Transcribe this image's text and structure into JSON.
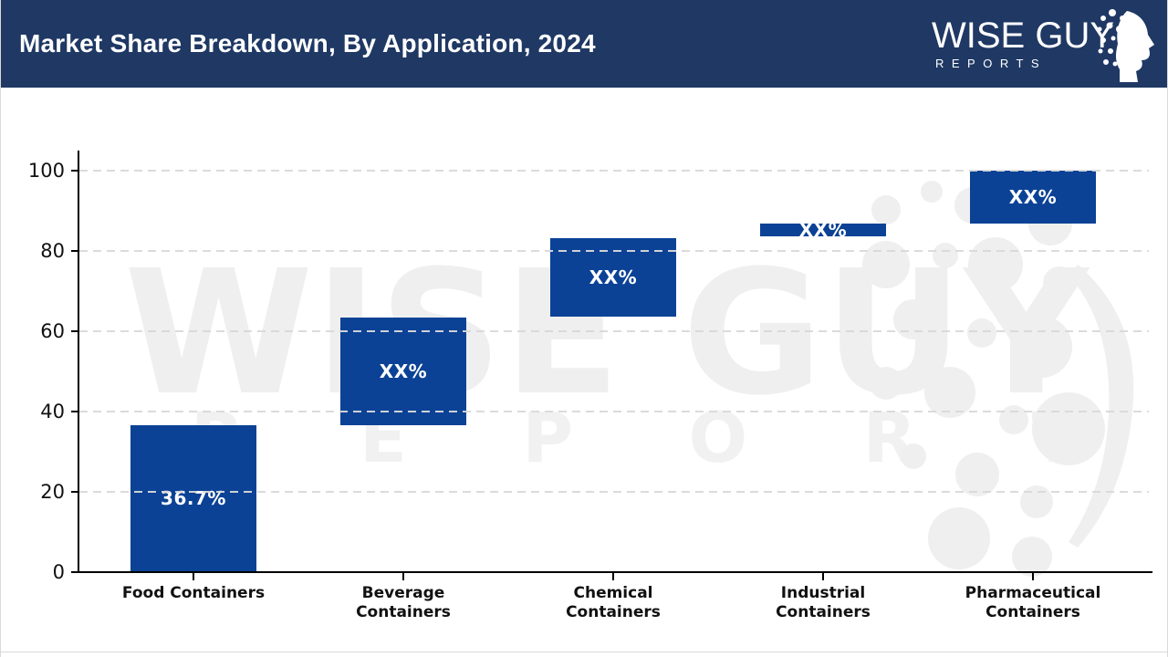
{
  "header": {
    "title": "Market Share Breakdown, By Application, 2024",
    "bg_color": "#1f3864",
    "logo": {
      "wordmark": "WISE GUY",
      "subtext": "R E P O R T S",
      "icon": "dotted-face-profile-icon",
      "color": "#ffffff"
    }
  },
  "watermark": {
    "line1": "WISE GUY",
    "line2": "REPORTS",
    "icon": "dotted-face-profile-watermark",
    "color": "#efefef"
  },
  "chart_data": {
    "type": "bar",
    "subtype": "waterfall",
    "title": "Market Share Breakdown, By Application, 2024",
    "categories": [
      "Food Containers",
      "Beverage\nContainers",
      "Chemical\nContainers",
      "Industrial\nContainers",
      "Pharmaceutical\nContainers"
    ],
    "segments": [
      {
        "category": "Food Containers",
        "start": 0,
        "end": 36.7,
        "label": "36.7%"
      },
      {
        "category": "Beverage Containers",
        "start": 36.7,
        "end": 63.4,
        "label": "XX%"
      },
      {
        "category": "Chemical Containers",
        "start": 63.6,
        "end": 83.2,
        "label": "XX%"
      },
      {
        "category": "Industrial Containers",
        "start": 83.6,
        "end": 86.8,
        "label": "XX%"
      },
      {
        "category": "Pharmaceutical Containers",
        "start": 86.8,
        "end": 100,
        "label": "XX%"
      }
    ],
    "xlabel": "",
    "ylabel": "",
    "ylim": [
      0,
      105
    ],
    "yticks": [
      0,
      20,
      40,
      60,
      80,
      100
    ],
    "grid": "horizontal-dashed",
    "grid_color": "#d9d9d9",
    "bar_color": "#0b4296",
    "bar_label_color": "#ffffff",
    "axis_color": "#000000",
    "legend": "none"
  }
}
